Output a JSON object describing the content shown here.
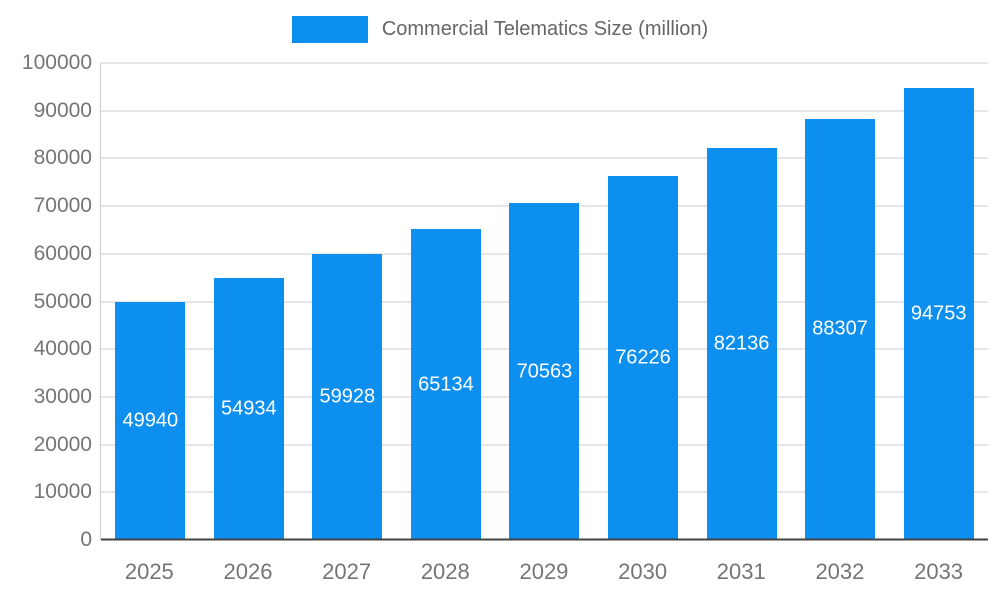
{
  "chart_data": {
    "type": "bar",
    "title": "Commercial Telematics Size (million)",
    "categories": [
      "2025",
      "2026",
      "2027",
      "2028",
      "2029",
      "2030",
      "2031",
      "2032",
      "2033"
    ],
    "values": [
      49940,
      54934,
      59928,
      65134,
      70563,
      76226,
      82136,
      88307,
      94753
    ],
    "xlabel": "",
    "ylabel": "",
    "ylim": [
      0,
      100000
    ],
    "yticks": [
      0,
      10000,
      20000,
      30000,
      40000,
      50000,
      60000,
      70000,
      80000,
      90000,
      100000
    ],
    "grid": true,
    "legend_position": "top",
    "bar_color": "#0d8ff0",
    "value_label_color": "#ffffff",
    "axis_label_color": "#757575",
    "gridline_color": "#cccccc"
  },
  "legend": {
    "label": "Commercial Telematics Size (million)"
  }
}
